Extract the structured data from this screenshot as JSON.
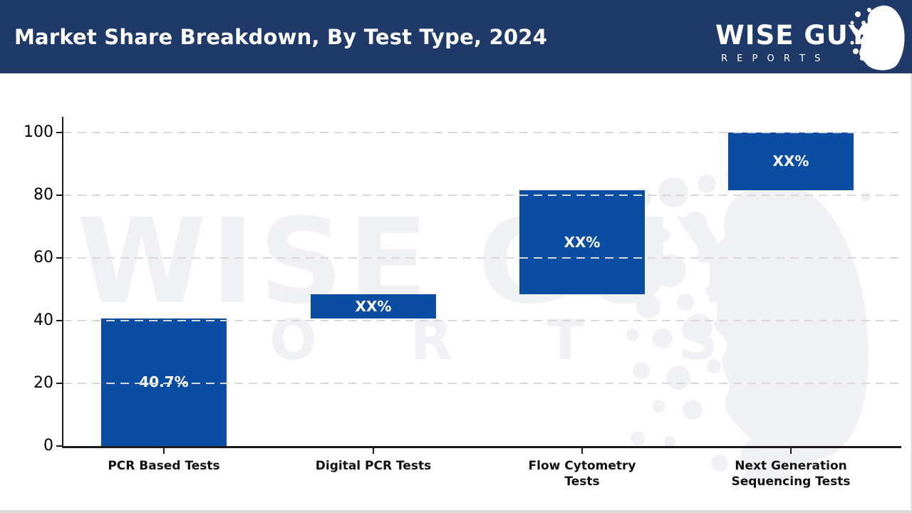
{
  "header": {
    "title": "Market Share Breakdown, By Test Type, 2024",
    "logo": {
      "name_line": "WISE GUY",
      "sub_line": "R E P O R T S"
    }
  },
  "watermark": {
    "big_text": "WISE GUY",
    "sub_text": "P O R T S"
  },
  "chart_data": {
    "type": "bar",
    "variant": "waterfall",
    "title": "Market Share Breakdown, By Test Type, 2024",
    "categories": [
      "PCR Based Tests",
      "Digital PCR Tests",
      "Flow Cytometry Tests",
      "Next Generation Sequencing Tests"
    ],
    "segments": [
      {
        "category": "PCR Based Tests",
        "start": 0,
        "end": 40.7,
        "label": "40.7%"
      },
      {
        "category": "Digital PCR Tests",
        "start": 40.7,
        "end": 48.4,
        "label": "XX%"
      },
      {
        "category": "Flow Cytometry Tests",
        "start": 48.4,
        "end": 81.6,
        "label": "XX%"
      },
      {
        "category": "Next Generation Sequencing Tests",
        "start": 81.6,
        "end": 100,
        "label": "XX%"
      }
    ],
    "xlabel": "",
    "ylabel": "",
    "ylim": [
      0,
      100
    ],
    "yticks": [
      0,
      20,
      40,
      60,
      80,
      100
    ],
    "grid": {
      "axis": "y",
      "style": "dashed"
    },
    "legend": "none",
    "colors": {
      "bar": "#0b4da2",
      "grid": "#d9d9d9",
      "axis": "#1a1a1a",
      "bar_label": "#ffffff",
      "header_bg": "#1f3a68",
      "watermark": "#f0f1f4",
      "strip": "#d9d9d9"
    }
  }
}
